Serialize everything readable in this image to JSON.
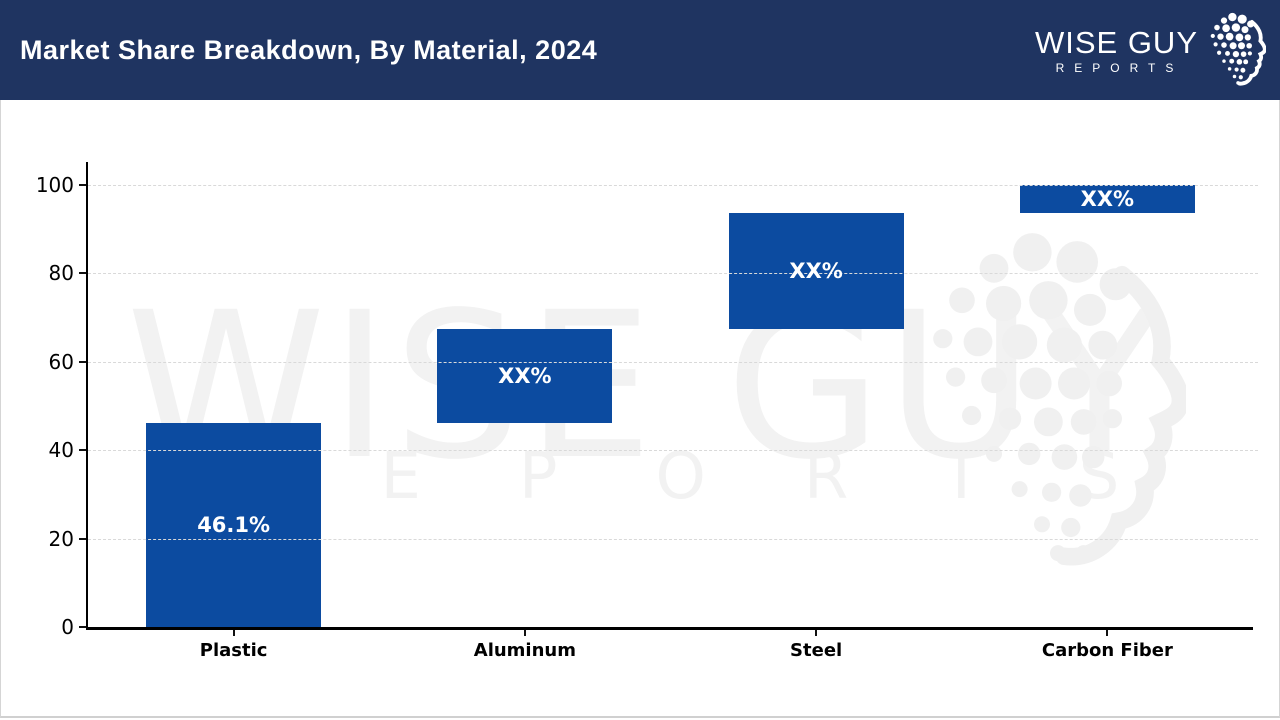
{
  "header": {
    "title": "Market Share Breakdown, By Material, 2024",
    "logo": {
      "brand_top": "WISE GUY",
      "brand_bottom": "REPORTS"
    }
  },
  "watermark": {
    "line1": "WISE GUY",
    "line2": "REPORTS"
  },
  "chart_data": {
    "type": "bar",
    "subtype": "waterfall",
    "title": "Market Share Breakdown, By Material, 2024",
    "categories": [
      "Plastic",
      "Aluminum",
      "Steel",
      "Carbon Fiber"
    ],
    "series": [
      {
        "name": "Plastic",
        "start": 0,
        "end": 46.1,
        "label": "46.1%"
      },
      {
        "name": "Aluminum",
        "start": 46.1,
        "end": 67.4,
        "label": "XX%"
      },
      {
        "name": "Steel",
        "start": 67.4,
        "end": 93.6,
        "label": "XX%"
      },
      {
        "name": "Carbon Fiber",
        "start": 93.6,
        "end": 100,
        "label": "XX%"
      }
    ],
    "ylim": [
      0,
      100
    ],
    "yticks": [
      0,
      20,
      40,
      60,
      80,
      100
    ],
    "xlabel": "",
    "ylabel": "",
    "grid": "horizontal-dashed-over-bars",
    "legend": "none",
    "bar_color": "#0c4ba0",
    "bar_label_color": "#ffffff"
  },
  "colors": {
    "header_bg": "#1f3461",
    "bar_blue": "#0c4ba0",
    "grid_line": "#d9d9d9",
    "watermark_gray": "#f2f2f2",
    "title_white": "#ffffff"
  }
}
